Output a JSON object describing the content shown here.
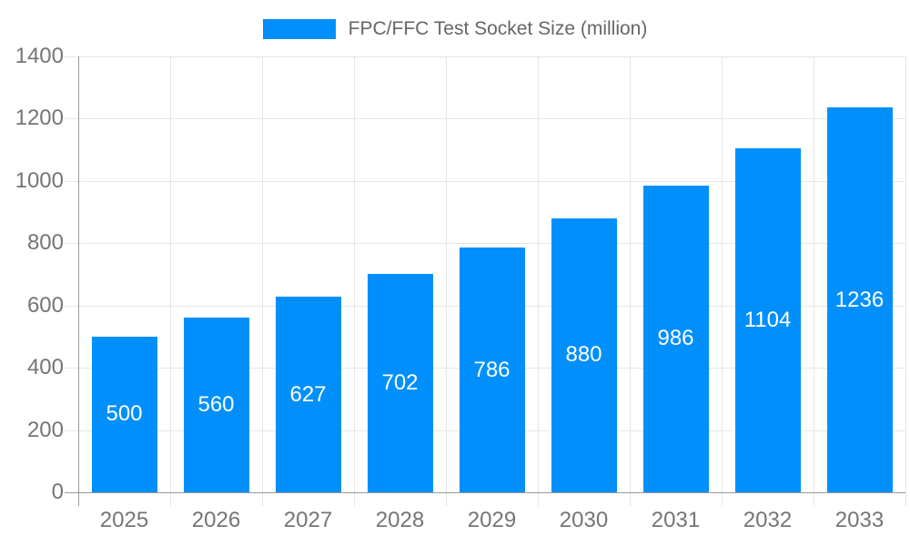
{
  "legend": {
    "position": "top-center",
    "items": [
      {
        "label": "FPC/FFC Test Socket Size (million)",
        "swatch_color": "#008FFB"
      }
    ]
  },
  "chart_data": {
    "type": "bar",
    "title": "FPC/FFC Test Socket Size (million)",
    "categories": [
      "2025",
      "2026",
      "2027",
      "2028",
      "2029",
      "2030",
      "2031",
      "2032",
      "2033"
    ],
    "series": [
      {
        "name": "FPC/FFC Test Socket Size (million)",
        "values": [
          500,
          560,
          627,
          702,
          786,
          880,
          986,
          1104,
          1236
        ]
      }
    ],
    "xlabel": "",
    "ylabel": "",
    "ylim": [
      0,
      1400
    ],
    "y_ticks": [
      0,
      200,
      400,
      600,
      800,
      1000,
      1200,
      1400
    ],
    "grid": "horizontal-and-vertical",
    "value_labels_shown": true,
    "value_label_position": "center-of-bar",
    "legend_position": "top-center",
    "colors": {
      "bar": "#008FFB",
      "axis_label": "#757575",
      "legend_text": "#666666",
      "grid_line": "#e6e6e6",
      "axis_line": "#999999",
      "value_label": "#ffffff",
      "background": "#ffffff"
    }
  }
}
